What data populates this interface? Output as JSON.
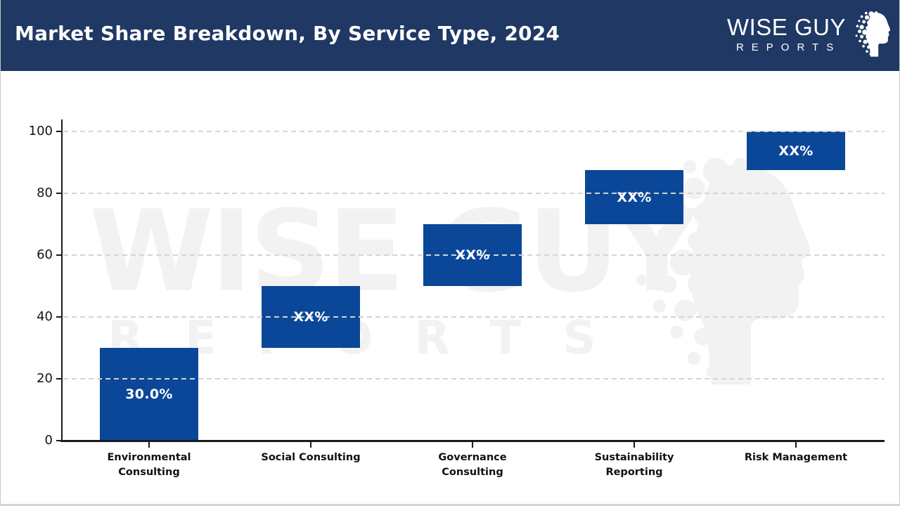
{
  "header": {
    "title": "Market Share Breakdown, By Service Type, 2024",
    "background_color": "#1f3864",
    "text_color": "#ffffff",
    "logo": {
      "wordmark": "WISE GUY",
      "subtext": "REPORTS",
      "head_icon": "dotted-face-profile"
    }
  },
  "watermark": {
    "wordmark": "WISE GUY",
    "subtext": "REPORTS",
    "color": "#f2f2f3"
  },
  "chart_data": {
    "type": "bar",
    "variant": "waterfall",
    "title": "Market Share Breakdown, By Service Type, 2024",
    "xlabel": "",
    "ylabel": "",
    "ylim": [
      0,
      104
    ],
    "yticks": [
      0,
      20,
      40,
      60,
      80,
      100
    ],
    "grid": "dashed-horizontal",
    "legend": "none",
    "bar_color": "#0b4798",
    "bar_label_color": "#ffffff",
    "grid_color": "#d4d4d4",
    "axis_color": "#1a1a1a",
    "categories": [
      "Environmental\nConsulting",
      "Social Consulting",
      "Governance\nConsulting",
      "Sustainability\nReporting",
      "Risk Management"
    ],
    "segments": [
      {
        "category": "Environmental Consulting",
        "label": "30.0%",
        "start": 0,
        "end": 30
      },
      {
        "category": "Social Consulting",
        "label": "XX%",
        "start": 30,
        "end": 50
      },
      {
        "category": "Governance Consulting",
        "label": "XX%",
        "start": 50,
        "end": 70
      },
      {
        "category": "Sustainability Reporting",
        "label": "XX%",
        "start": 70,
        "end": 87.5
      },
      {
        "category": "Risk Management",
        "label": "XX%",
        "start": 87.5,
        "end": 100
      }
    ]
  },
  "footer": {
    "strip_color": "#d4d4d4"
  }
}
